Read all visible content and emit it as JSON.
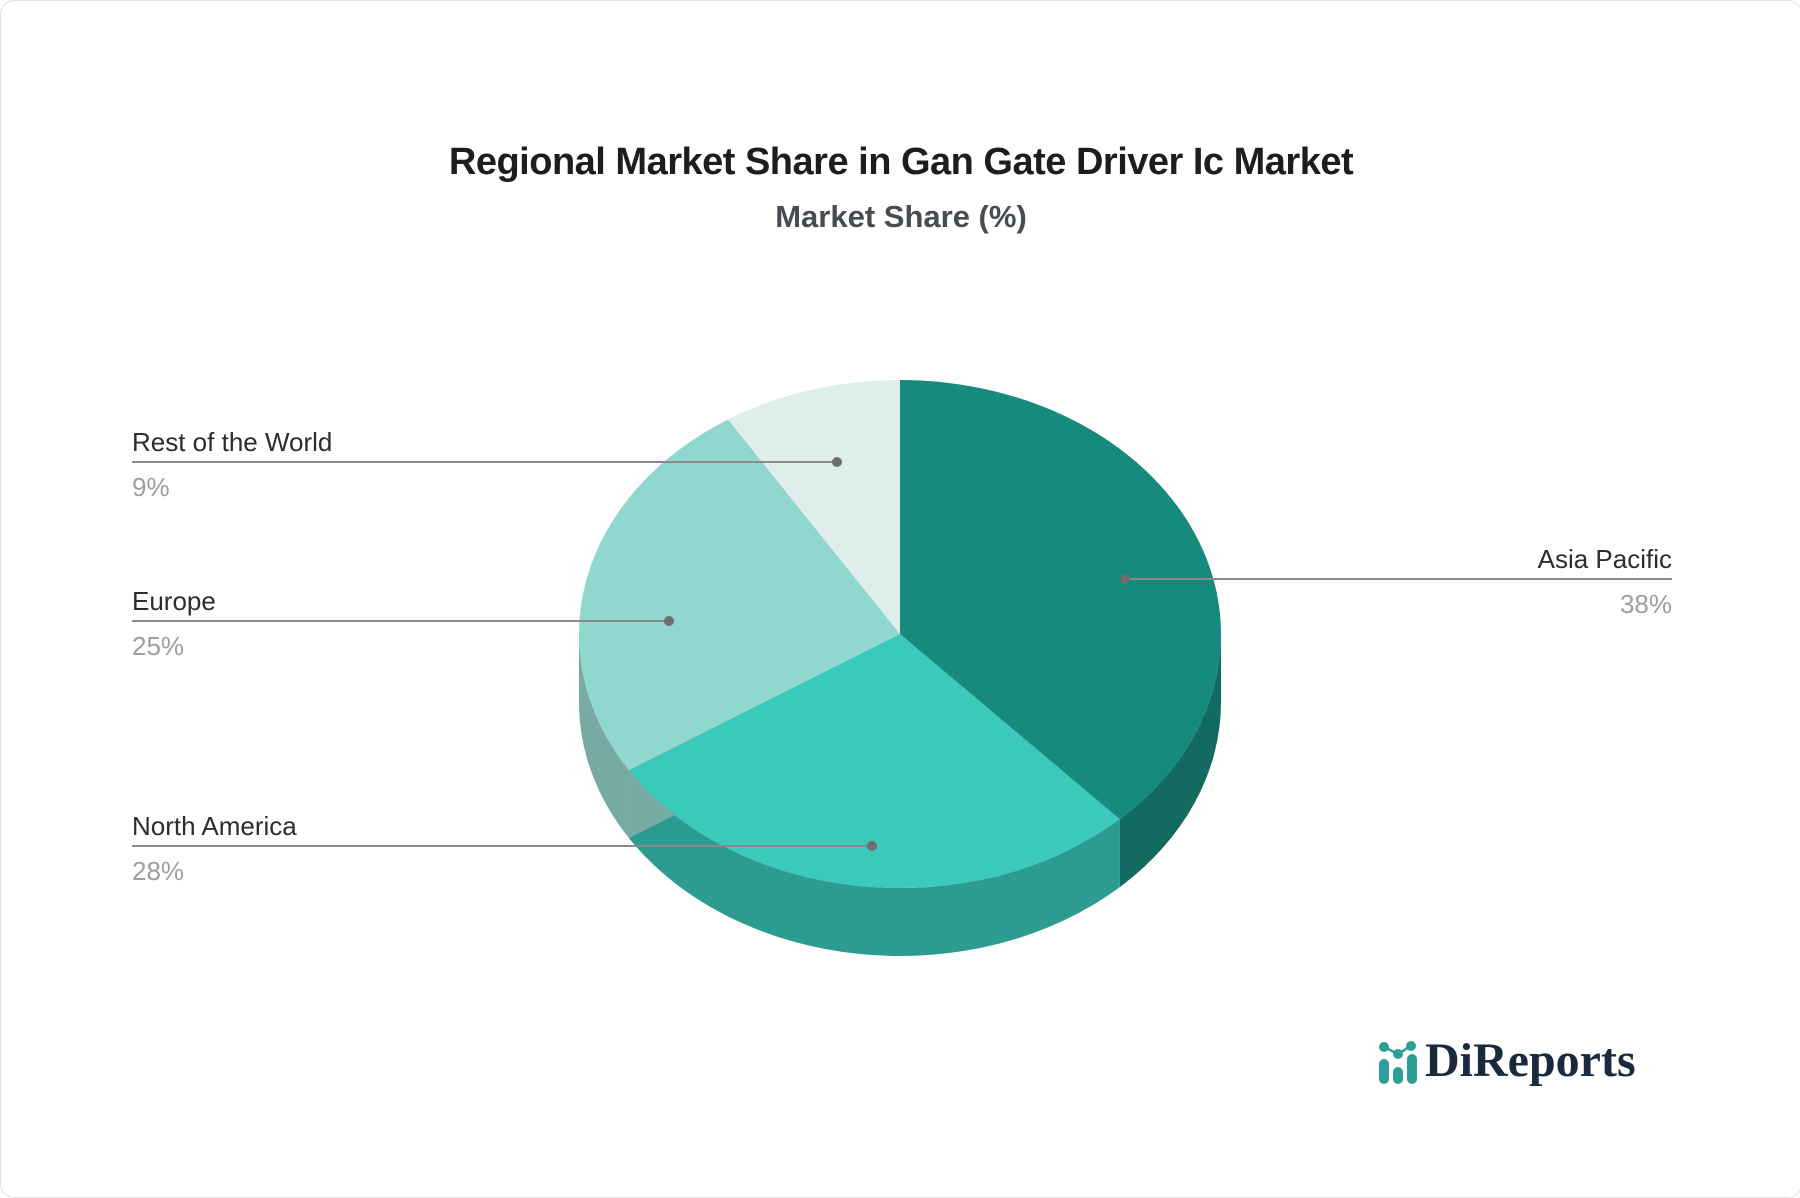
{
  "title": "Regional Market Share in Gan Gate Driver Ic Market",
  "subtitle": "Market Share (%)",
  "brand": {
    "name": "DiReports",
    "icon": "bar-chart-trend-icon",
    "text_color": "#1b2940",
    "icon_color": "#2e9e98"
  },
  "chart_data": {
    "type": "pie",
    "style": "3d",
    "title": "Regional Market Share in Gan Gate Driver Ic Market",
    "subtitle": "Market Share (%)",
    "unit": "%",
    "start_angle_deg": 0,
    "direction": "clockwise",
    "legend_position": "none",
    "slices": [
      {
        "label": "Asia Pacific",
        "value": 38,
        "display": "38%",
        "color": "#178a7e",
        "side_color": "#136a61"
      },
      {
        "label": "North America",
        "value": 28,
        "display": "28%",
        "color": "#3ac9bb",
        "side_color": "#2d9c90"
      },
      {
        "label": "Europe",
        "value": 25,
        "display": "25%",
        "color": "#90d7cf",
        "side_color": "#76aaa2"
      },
      {
        "label": "Rest of the World",
        "value": 9,
        "display": "9%",
        "color": "#ddeeeb",
        "side_color": "#c2d8d3"
      }
    ],
    "label_text_color": "#2d2d2d",
    "value_text_color": "#9e9e9e",
    "leader_line_color": "#8a8a8a",
    "leader_dot_color": "#6e6e6e"
  }
}
